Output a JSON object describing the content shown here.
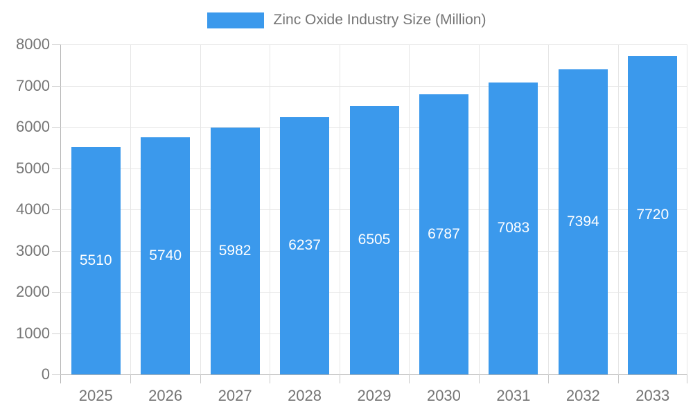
{
  "chart_data": {
    "type": "bar",
    "title": "Zinc Oxide Industry Size (Million)",
    "categories": [
      "2025",
      "2026",
      "2027",
      "2028",
      "2029",
      "2030",
      "2031",
      "2032",
      "2033"
    ],
    "values": [
      5510,
      5740,
      5982,
      6237,
      6505,
      6787,
      7083,
      7394,
      7720
    ],
    "series": [
      {
        "name": "Zinc Oxide Industry Size (Million)",
        "values": [
          5510,
          5740,
          5982,
          6237,
          6505,
          6787,
          7083,
          7394,
          7720
        ]
      }
    ],
    "xlabel": "",
    "ylabel": "",
    "ylim": [
      0,
      8000
    ],
    "y_ticks": [
      0,
      1000,
      2000,
      3000,
      4000,
      5000,
      6000,
      7000,
      8000
    ],
    "grid": true,
    "legend_position": "top-center",
    "value_labels_inside_bars": true,
    "colors": {
      "bar": "#3B99EC",
      "value_label": "#FFFFFF",
      "axis_text": "#757575",
      "gridline": "#E6E6E6",
      "axis_line": "#B3B3B3"
    }
  }
}
